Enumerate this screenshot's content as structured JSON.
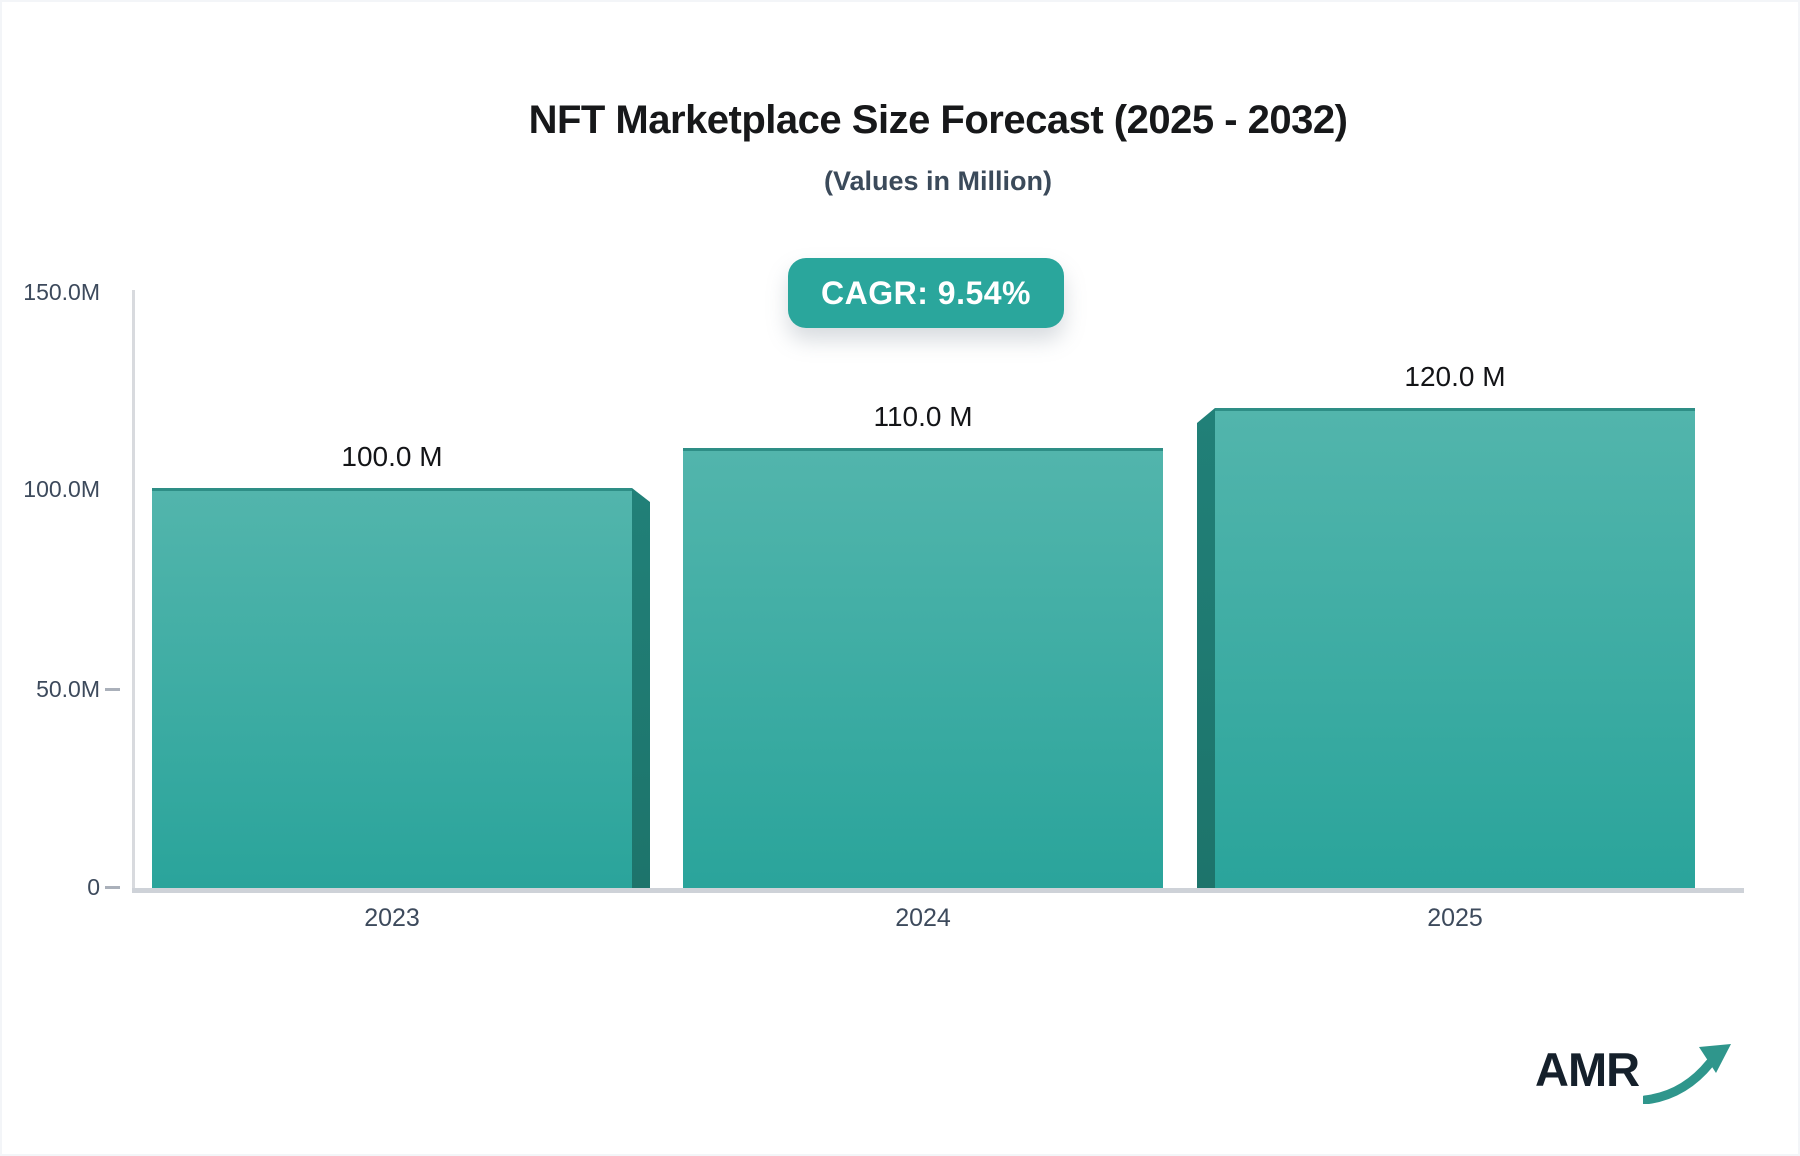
{
  "chart_data": {
    "type": "bar",
    "title": "NFT Marketplace Size Forecast (2025 - 2032)",
    "subtitle": "(Values in Million)",
    "badge_label": "CAGR: 9.54%",
    "categories": [
      "2023",
      "2024",
      "2025"
    ],
    "values": [
      100,
      110,
      120
    ],
    "value_labels": [
      "100.0 M",
      "110.0 M",
      "120.0 M"
    ],
    "unit": "Million",
    "ylabel": "",
    "xlabel": "",
    "y_ticks": [
      "150.0M",
      "100.0M",
      "50.0M",
      "0"
    ],
    "ylim": [
      0,
      150
    ],
    "grid": false,
    "legend": "none",
    "colors": {
      "bar_top": "#52b5ac",
      "bar_bottom": "#2aa49b",
      "bar_top_border": "#2e8e86",
      "bar_side_3d": "#1d746b",
      "badge_background": "#2aa69c",
      "badge_text": "#ffffff",
      "axis": "#d8dade",
      "tick_text": "#3d4a5c"
    }
  },
  "logo": {
    "text": "AMR"
  }
}
